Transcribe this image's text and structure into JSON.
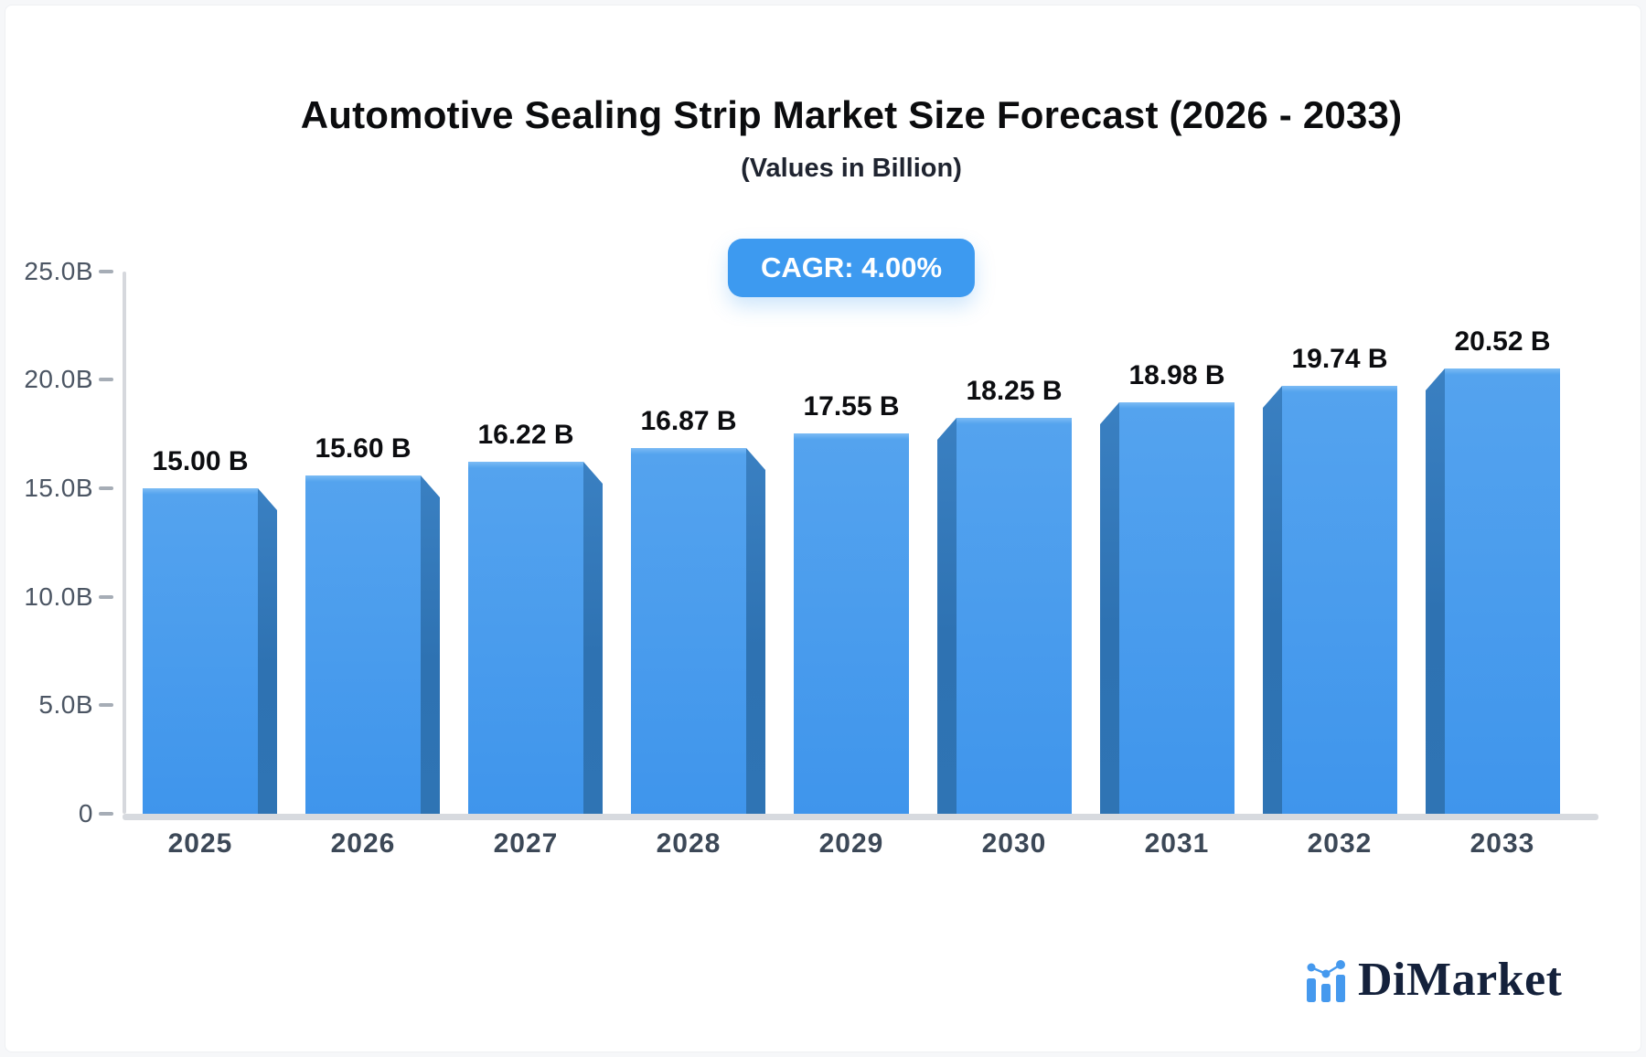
{
  "header": {
    "title": "Automotive Sealing Strip Market Size Forecast (2026 - 2033)",
    "subtitle": "(Values in Billion)",
    "cagr_badge": "CAGR: 4.00%"
  },
  "chart_data": {
    "type": "bar",
    "title": "Automotive Sealing Strip Market Size Forecast (2026 - 2033)",
    "subtitle": "(Values in Billion)",
    "annotation": "CAGR: 4.00%",
    "categories": [
      "2025",
      "2026",
      "2027",
      "2028",
      "2029",
      "2030",
      "2031",
      "2032",
      "2033"
    ],
    "values": [
      15.0,
      15.6,
      16.22,
      16.87,
      17.55,
      18.25,
      18.98,
      19.74,
      20.52
    ],
    "bar_labels": [
      "15.00 B",
      "15.60 B",
      "16.22 B",
      "16.87 B",
      "17.55 B",
      "18.25 B",
      "18.98 B",
      "19.74 B",
      "20.52 B"
    ],
    "xlabel": "",
    "ylabel": "",
    "ylim": [
      0,
      25
    ],
    "grid": false,
    "legend": false,
    "y_ticks": [
      {
        "value": 25,
        "label": "25.0B"
      },
      {
        "value": 20,
        "label": "20.0B"
      },
      {
        "value": 15,
        "label": "15.0B"
      },
      {
        "value": 10,
        "label": "10.0B"
      },
      {
        "value": 5,
        "label": "5.0B"
      },
      {
        "value": 0,
        "label": "0"
      }
    ],
    "colors": {
      "bar_front_top": "#5ea9f0",
      "bar_front_bottom": "#3f95ec",
      "bar_side": "#2e72b2",
      "axis": "#d6d8dd",
      "tick": "#a6adb6",
      "badge_background": "#3d9af0",
      "badge_text": "#ffffff"
    }
  },
  "brand": {
    "name": "DiMarket",
    "text_color": "#14213b",
    "icon_color": "#4599ee"
  }
}
